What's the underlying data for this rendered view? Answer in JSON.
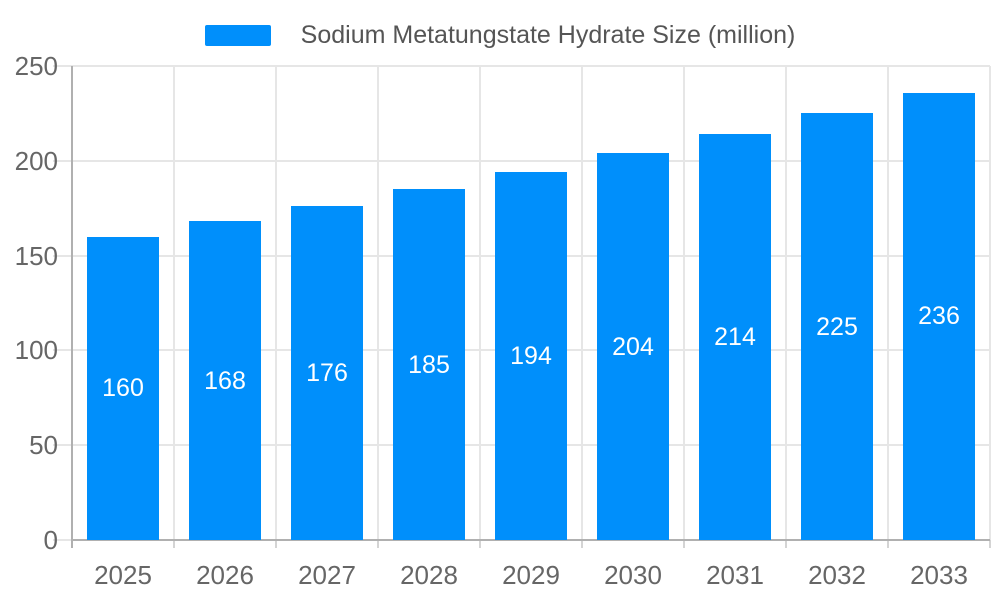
{
  "chart_data": {
    "type": "bar",
    "title": "Sodium Metatungstate Hydrate Size (million)",
    "legend": {
      "position": "top",
      "items": [
        {
          "label": "Sodium Metatungstate Hydrate Size (million)",
          "color": "#008FFB"
        }
      ]
    },
    "categories": [
      "2025",
      "2026",
      "2027",
      "2028",
      "2029",
      "2030",
      "2031",
      "2032",
      "2033"
    ],
    "values": [
      160,
      168,
      176,
      185,
      194,
      204,
      214,
      225,
      236
    ],
    "xlabel": "",
    "ylabel": "",
    "ylim": [
      0,
      250
    ],
    "yticks": [
      0,
      50,
      100,
      150,
      200,
      250
    ],
    "grid": true,
    "bar_value_labels_position": "center-inside",
    "colors": {
      "bar": "#008FFB",
      "bar_value_label": "#ffffff",
      "grid": "#e6e6e6",
      "axis": "#b0b0b0",
      "axis_tick": "#d4d4d4",
      "tick_label": "#666666",
      "legend_text": "#555555",
      "background": "#ffffff"
    }
  }
}
